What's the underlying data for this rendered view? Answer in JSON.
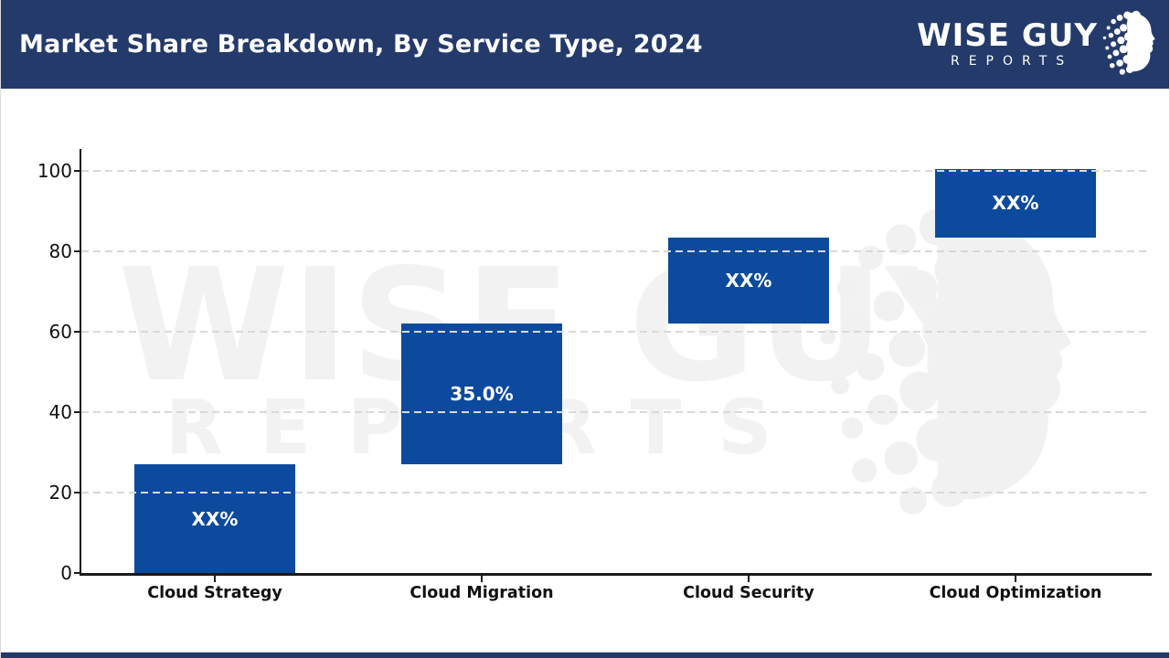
{
  "header": {
    "title": "Market Share Breakdown, By Service Type, 2024",
    "logo": {
      "line1": "WISE GUY",
      "line2": "REPORTS"
    }
  },
  "watermark": {
    "line1": "WISE GUY",
    "line2": "REPORTS"
  },
  "chart_data": {
    "type": "bar",
    "subtype": "waterfall-floating-bars",
    "title": "Market Share Breakdown, By Service Type, 2024",
    "categories": [
      "Cloud Strategy",
      "Cloud Migration",
      "Cloud Security",
      "Cloud Optimization"
    ],
    "bars": [
      {
        "category": "Cloud Strategy",
        "start": 0,
        "end": 27,
        "label": "XX%"
      },
      {
        "category": "Cloud Migration",
        "start": 27,
        "end": 62,
        "label": "35.0%"
      },
      {
        "category": "Cloud Security",
        "start": 62,
        "end": 83.5,
        "label": "XX%"
      },
      {
        "category": "Cloud Optimization",
        "start": 83.5,
        "end": 100.5,
        "label": "XX%"
      }
    ],
    "yticks": [
      0,
      20,
      40,
      60,
      80,
      100
    ],
    "ylim": [
      0,
      100
    ],
    "xlabel": "",
    "ylabel": "",
    "grid": "horizontal-dashed",
    "legend": "none"
  },
  "colors": {
    "header_bg": "#233A6B",
    "bar_fill": "#0C4A9E",
    "bar_label": "#FFFFFF",
    "grid_line": "#D9D9D9",
    "axis_line": "#1A1A1A",
    "tick_label": "#111111",
    "watermark": "#F2F2F2",
    "footer_bar": "#233A6B",
    "frame_border": "#DCDCDC"
  }
}
